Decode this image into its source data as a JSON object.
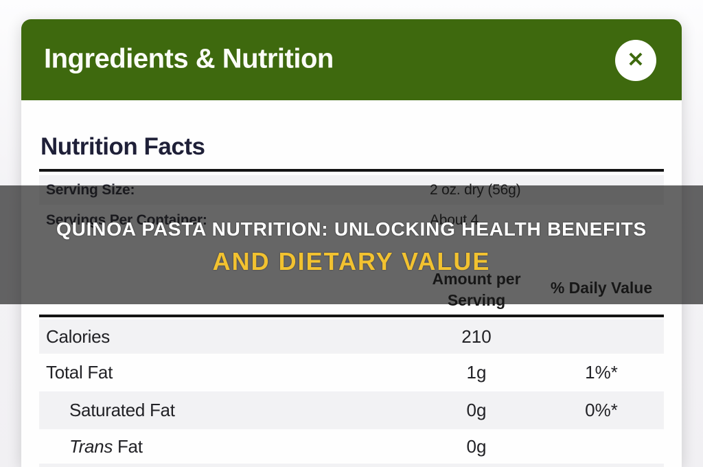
{
  "overlay_title": {
    "line1": "QUINOA PASTA NUTRITION: UNLOCKING HEALTH BENEFITS",
    "line2": "AND DIETARY VALUE",
    "line1_color": "#ffffff",
    "line2_color": "#f2c230"
  },
  "colors": {
    "header_green": "#3e690e",
    "title_yellow": "#f2c230",
    "stripe_gray": "#f2f2f4"
  },
  "modal": {
    "header": {
      "title": "Ingredients & Nutrition",
      "close_icon": "✕"
    },
    "section_title": "Nutrition Facts",
    "serving_info": [
      {
        "label": "Serving Size:",
        "value": "2 oz. dry (56g)"
      },
      {
        "label": "Servings Per Container:",
        "value": "About 4"
      }
    ],
    "table": {
      "columns": {
        "amount_line1": "Amount per",
        "amount_line2": "Serving",
        "daily": "% Daily Value"
      },
      "rows": [
        {
          "name": "Calories",
          "amount": "210",
          "daily": ""
        },
        {
          "name": "Total Fat",
          "amount": "1g",
          "daily": "1%*"
        },
        {
          "name": "Saturated Fat",
          "amount": "0g",
          "daily": "0%*"
        },
        {
          "name_prefix": "Trans",
          "name": " Fat",
          "amount": "0g",
          "daily": ""
        }
      ]
    }
  }
}
